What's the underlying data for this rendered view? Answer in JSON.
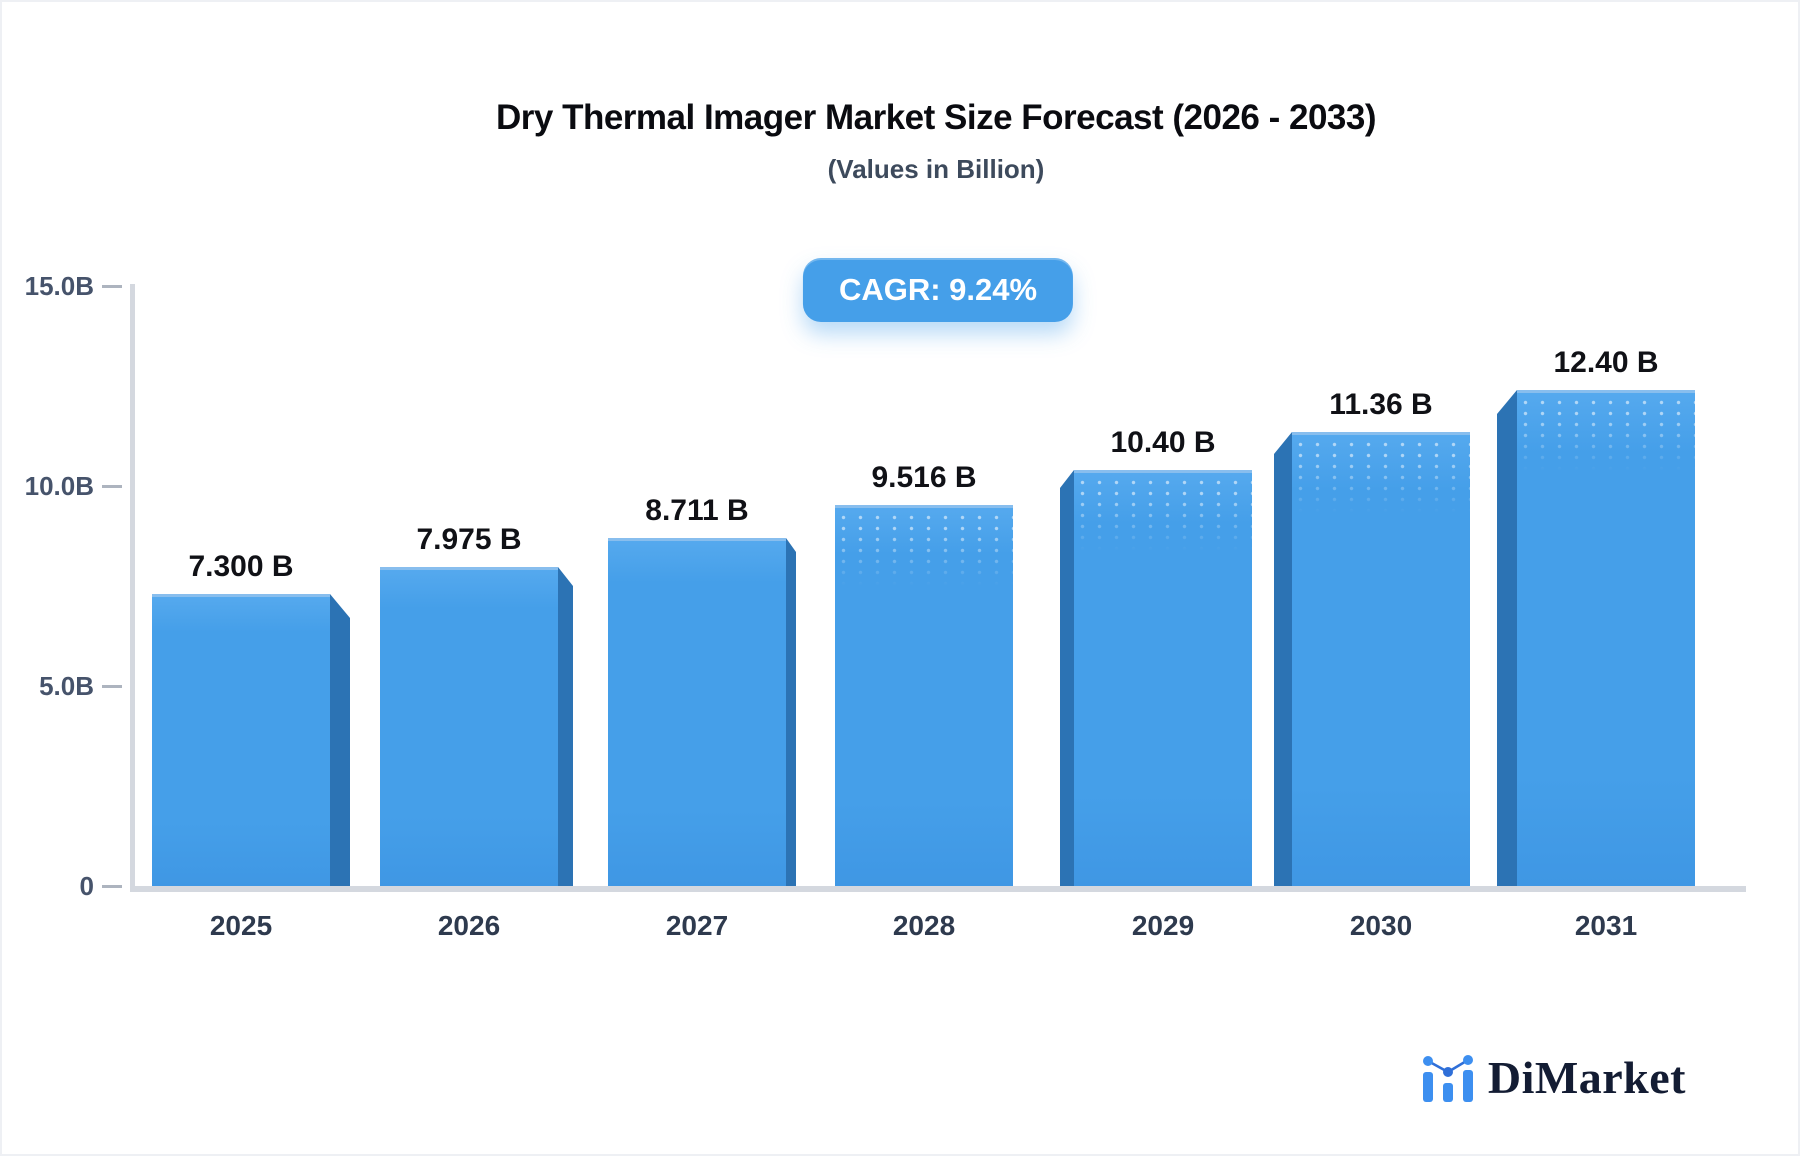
{
  "header": {
    "title": "Dry Thermal Imager Market Size Forecast (2026 - 2033)",
    "subtitle": "(Values in Billion)"
  },
  "badge": {
    "label": "CAGR: 9.24%"
  },
  "chart_data": {
    "type": "bar",
    "title": "Dry Thermal Imager Market Size Forecast (2026 - 2033)",
    "subtitle": "(Values in Billion)",
    "cagr": "9.24%",
    "categories": [
      "2025",
      "2026",
      "2027",
      "2028",
      "2029",
      "2030",
      "2031"
    ],
    "values": [
      7.3,
      7.975,
      8.711,
      9.516,
      10.4,
      11.36,
      12.4
    ],
    "value_labels": [
      "7.300 B",
      "7.975 B",
      "8.711 B",
      "9.516 B",
      "10.40 B",
      "11.36 B",
      "12.40 B"
    ],
    "xlabel": "",
    "ylabel": "",
    "ylim": [
      0,
      15
    ],
    "y_ticks": [
      {
        "label": "15.0B",
        "value": 15
      },
      {
        "label": "10.0B",
        "value": 10
      },
      {
        "label": "5.0B",
        "value": 5
      },
      {
        "label": "0",
        "value": 0
      }
    ],
    "grid": false,
    "legend": false,
    "style": "3d-extruded-bars"
  },
  "colors": {
    "accent": "#459fe9",
    "bar_face": "#459fe9",
    "bar_side": "#2c73b4",
    "axis": "#d4d8df",
    "badge_bg": "#459fe9",
    "badge_text": "#ffffff",
    "title_text": "#0a0b10",
    "subtitle_text": "#3d4a5c",
    "tick_text": "#46536b",
    "logo_text": "#131c33",
    "logo_icon": "#3d8ff0"
  },
  "logo": {
    "icon": "bar-chart-sparkline-icon",
    "text": "DiMarket"
  }
}
